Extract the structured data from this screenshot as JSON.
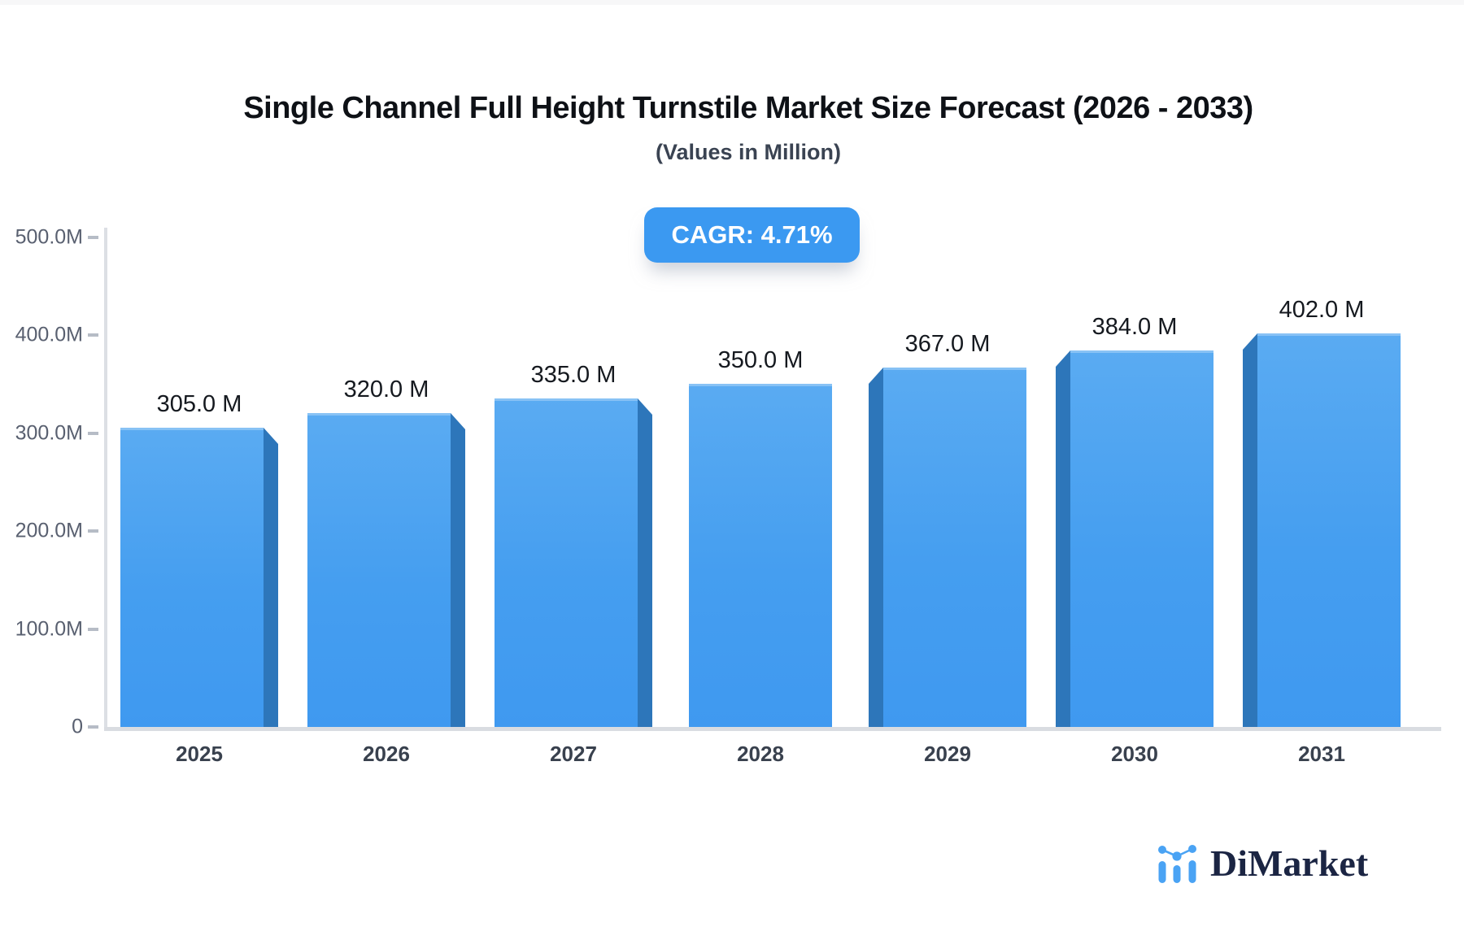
{
  "title": "Single Channel Full Height Turnstile Market Size Forecast (2026 - 2033)",
  "subtitle": "(Values in Million)",
  "badge": {
    "label": "CAGR: 4.71%",
    "bg_color": "#3b99f1"
  },
  "chart_data": {
    "type": "bar",
    "title": "Single Channel Full Height Turnstile Market Size Forecast (2026 - 2033)",
    "subtitle": "(Values in Million)",
    "unit": "Million",
    "categories": [
      "2025",
      "2026",
      "2027",
      "2028",
      "2029",
      "2030",
      "2031"
    ],
    "values": [
      305,
      320,
      335,
      350,
      367,
      384,
      402
    ],
    "value_labels": [
      "305.0 M",
      "320.0 M",
      "335.0 M",
      "350.0 M",
      "367.0 M",
      "384.0 M",
      "402.0 M"
    ],
    "yticks": [
      {
        "label": "500.0M",
        "value": 500
      },
      {
        "label": "400.0M",
        "value": 400
      },
      {
        "label": "300.0M",
        "value": 300
      },
      {
        "label": "200.0M",
        "value": 200
      },
      {
        "label": "100.0M",
        "value": 100
      },
      {
        "label": "0",
        "value": 0
      }
    ],
    "ylim": [
      0,
      500
    ],
    "grid": "off",
    "legend": "none",
    "bar_front_color_top": "#5aabf2",
    "bar_front_color_bottom": "#3f99f0",
    "bar_side_color": "#2d76ba",
    "axis_color": "#d9dce1"
  },
  "branding": {
    "logo_text": "DiMarket",
    "logo_icon": "mini-bar-chart-icon",
    "text_color": "#1b2543",
    "icon_color": "#4aa3f4"
  }
}
